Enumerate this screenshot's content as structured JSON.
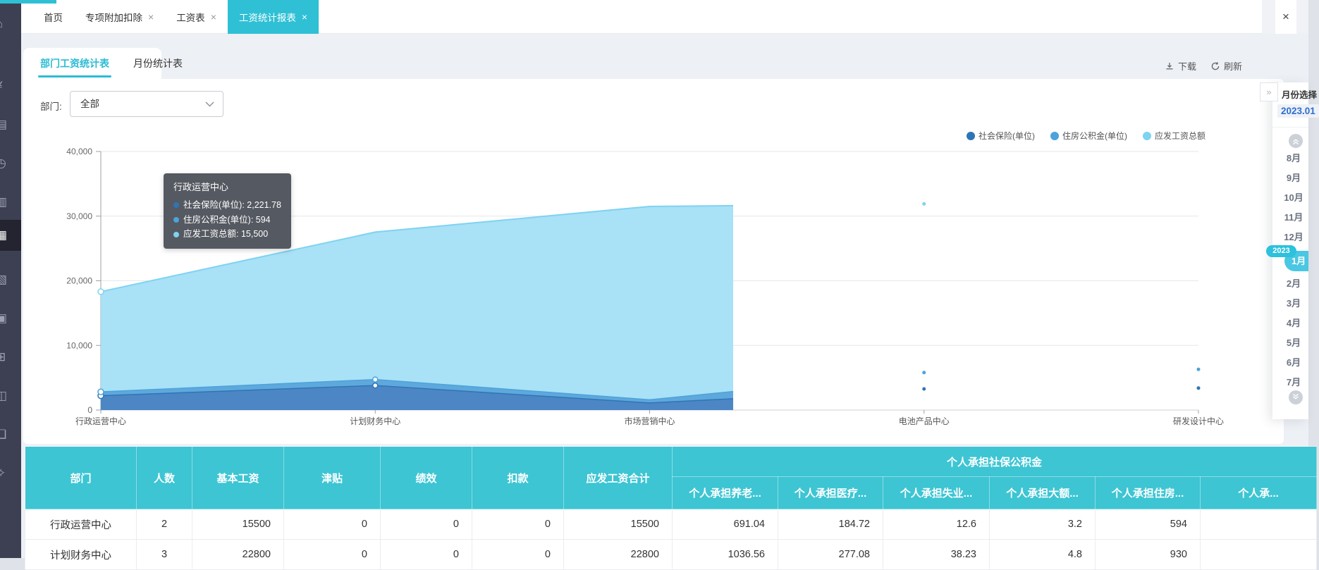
{
  "topbar": {
    "close_label": "×",
    "tab_close_glyph": "×",
    "tabs": [
      {
        "label": "首页",
        "closable": false,
        "active": false
      },
      {
        "label": "专项附加扣除",
        "closable": true,
        "active": false
      },
      {
        "label": "工资表",
        "closable": true,
        "active": false
      },
      {
        "label": "工资统计报表",
        "closable": true,
        "active": true
      }
    ]
  },
  "sidebar": {
    "active_index": 5,
    "icons": [
      {
        "name": "home-icon",
        "glyph": "⌂"
      },
      {
        "name": "currency-icon",
        "glyph": "¥"
      },
      {
        "name": "voucher-icon",
        "glyph": "▤"
      },
      {
        "name": "clock-icon",
        "glyph": "◷"
      },
      {
        "name": "ledger-icon",
        "glyph": "▥"
      },
      {
        "name": "salary-icon",
        "glyph": "▦"
      },
      {
        "name": "report-icon",
        "glyph": "▧"
      },
      {
        "name": "invoice-icon",
        "glyph": "▣"
      },
      {
        "name": "assets-icon",
        "glyph": "⊞"
      },
      {
        "name": "checkout-icon",
        "glyph": "◫"
      },
      {
        "name": "print-icon",
        "glyph": "❏"
      },
      {
        "name": "settings-icon",
        "glyph": "✧"
      }
    ]
  },
  "toolbar": {
    "download": "下载",
    "refresh": "刷新"
  },
  "subtabs": {
    "items": [
      {
        "label": "部门工资统计表",
        "active": true
      },
      {
        "label": "月份统计表",
        "active": false
      }
    ]
  },
  "filter": {
    "label": "部门:",
    "value": "全部"
  },
  "chart_data": {
    "type": "area",
    "stacked": true,
    "categories": [
      "行政运营中心",
      "计划财务中心",
      "市场营销中心",
      "电池产品中心",
      "研发设计中心"
    ],
    "series": [
      {
        "name": "社会保险(单位)",
        "color": "#2e75b6",
        "fill": "#4d86c4",
        "values": [
          2221.78,
          3800,
          1100,
          3270,
          3400
        ]
      },
      {
        "name": "住房公积金(单位)",
        "color": "#4ba3db",
        "fill": "#5fa8dc",
        "values": [
          594,
          930,
          500,
          2530,
          2900
        ]
      },
      {
        "name": "应发工资总额",
        "color": "#7ed3f1",
        "fill": "#a9e1f6",
        "values": [
          15500,
          22800,
          29900,
          26100,
          null
        ]
      }
    ],
    "ylim": [
      0,
      40000
    ],
    "yticks": [
      {
        "v": 0,
        "label": "0"
      },
      {
        "v": 10000,
        "label": "10,000"
      },
      {
        "v": 20000,
        "label": "20,000"
      },
      {
        "v": 30000,
        "label": "30,000"
      },
      {
        "v": 40000,
        "label": "40,000"
      }
    ],
    "legend_position": "top-right",
    "grid": true,
    "note": "stacked area drawn through 市场营销中心 then cut; 电池产品中心 and 研发设计中心 appear only as isolated points"
  },
  "tooltip": {
    "title": "行政运营中心",
    "rows": [
      {
        "label": "社会保险(单位)",
        "value": "2,221.78",
        "color": "#2e75b6"
      },
      {
        "label": "住房公积金(单位)",
        "value": "594",
        "color": "#4ba3db"
      },
      {
        "label": "应发工资总额",
        "value": "15,500",
        "color": "#7ed3f1"
      }
    ]
  },
  "month_panel": {
    "collapse_icon": "»",
    "title": "月份选择",
    "period": "2023.01",
    "months_above": [
      "8月",
      "9月",
      "10月",
      "11月",
      "12月"
    ],
    "year_badge": "2023",
    "selected": "1月",
    "months_below": [
      "2月",
      "3月",
      "4月",
      "5月",
      "6月",
      "7月"
    ]
  },
  "table": {
    "columns": [
      "部门",
      "人数",
      "基本工资",
      "津贴",
      "绩效",
      "扣款",
      "应发工资合计"
    ],
    "group": {
      "label": "个人承担社保公积金",
      "columns": [
        "个人承担养老...",
        "个人承担医疗...",
        "个人承担失业...",
        "个人承担大额...",
        "个人承担住房...",
        "个人承..."
      ]
    },
    "rows": [
      [
        "行政运营中心",
        "2",
        "15500",
        "0",
        "0",
        "0",
        "15500",
        "691.04",
        "184.72",
        "12.6",
        "3.2",
        "594",
        ""
      ],
      [
        "计划财务中心",
        "3",
        "22800",
        "0",
        "0",
        "0",
        "22800",
        "1036.56",
        "277.08",
        "38.23",
        "4.8",
        "930",
        ""
      ]
    ]
  }
}
